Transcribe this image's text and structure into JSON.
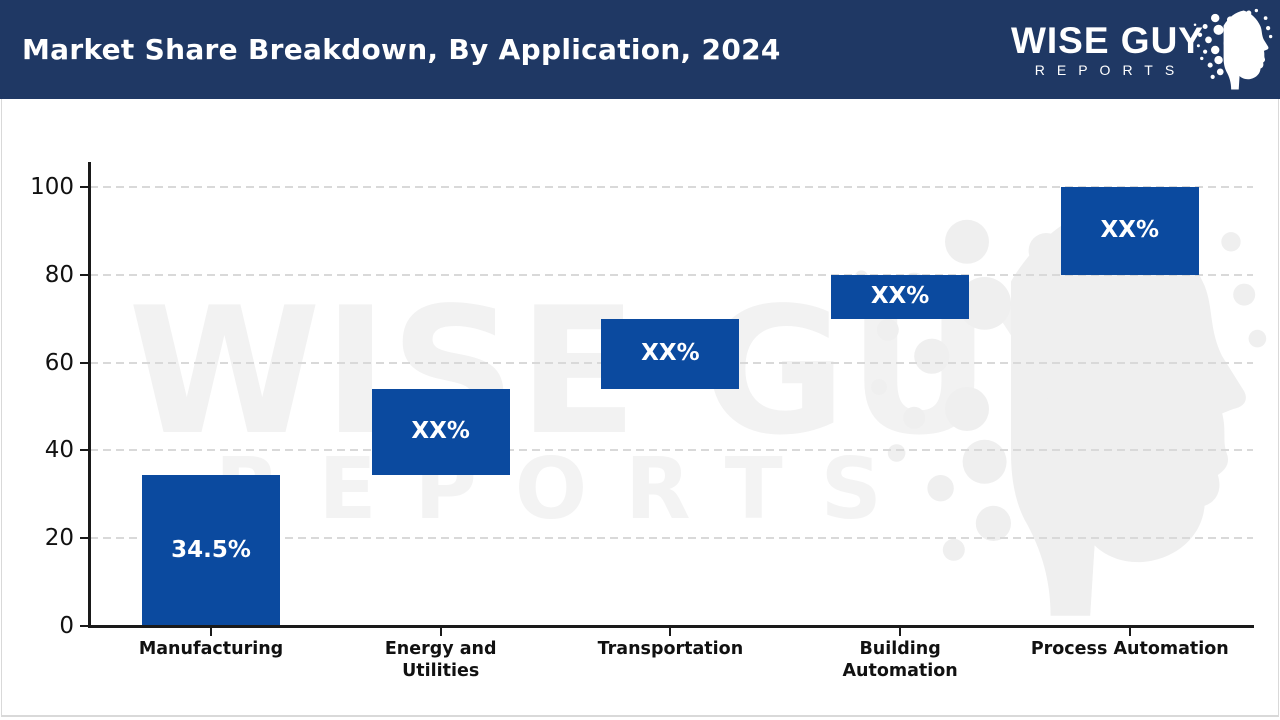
{
  "page": {
    "background": "#ffffff",
    "frame_color": "#d9d9d9"
  },
  "header": {
    "bg_color": "#1f3864",
    "title": "Market Share Breakdown, By Application, 2024",
    "logo": {
      "wordmark": "WISE GUY",
      "subtext": "REPORTS",
      "icon": "dotted-head-profile-icon"
    }
  },
  "watermark": {
    "wordmark": "WISE GUY",
    "subtext": "REPORTS",
    "color": "#f2f2f2"
  },
  "chart_data": {
    "type": "bar",
    "variant": "waterfall",
    "title": "Market Share Breakdown, By Application, 2024",
    "unit": "percent",
    "ylim": [
      0,
      100
    ],
    "yticks": [
      0,
      20,
      40,
      60,
      80,
      100
    ],
    "grid": {
      "horizontal": true,
      "style": "dashed",
      "color": "#d9d9d9"
    },
    "legend": "none",
    "bar_color": "#0b4a9f",
    "bar_label_color": "#ffffff",
    "axis_color": "#1a1a1a",
    "bars": [
      {
        "category": "Manufacturing",
        "category_lines": [
          "Manufacturing"
        ],
        "start": 0,
        "end": 34.5,
        "value": 34.5,
        "value_label": "34.5%"
      },
      {
        "category": "Energy and Utilities",
        "category_lines": [
          "Energy and",
          "Utilities"
        ],
        "start": 34.5,
        "end": 54,
        "value": 19.5,
        "value_label": "XX%"
      },
      {
        "category": "Transportation",
        "category_lines": [
          "Transportation"
        ],
        "start": 54,
        "end": 70,
        "value": 16,
        "value_label": "XX%"
      },
      {
        "category": "Building Automation",
        "category_lines": [
          "Building",
          "Automation"
        ],
        "start": 70,
        "end": 80,
        "value": 10,
        "value_label": "XX%"
      },
      {
        "category": "Process Automation",
        "category_lines": [
          "Process Automation"
        ],
        "start": 80,
        "end": 100,
        "value": 20,
        "value_label": "XX%"
      }
    ]
  }
}
